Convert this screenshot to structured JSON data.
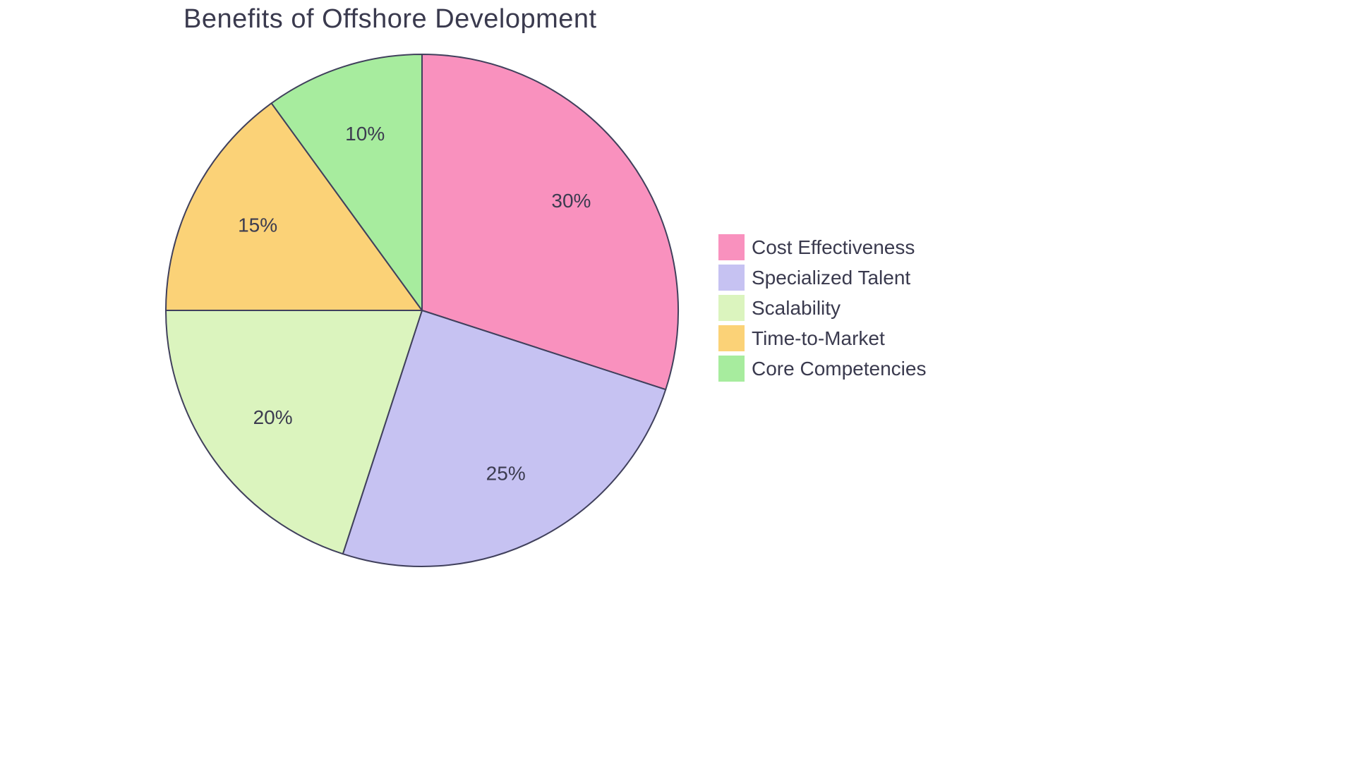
{
  "chart_data": {
    "type": "pie",
    "title": "Benefits of Offshore Development",
    "slices": [
      {
        "label": "Cost Effectiveness",
        "value": 30,
        "percent_label": "30%",
        "color": "#F991BE"
      },
      {
        "label": "Specialized Talent",
        "value": 25,
        "percent_label": "25%",
        "color": "#C6C2F2"
      },
      {
        "label": "Scalability",
        "value": 20,
        "percent_label": "20%",
        "color": "#DBF4BE"
      },
      {
        "label": "Time-to-Market",
        "value": 15,
        "percent_label": "15%",
        "color": "#FBD277"
      },
      {
        "label": "Core Competencies",
        "value": 10,
        "percent_label": "10%",
        "color": "#A7EC9E"
      }
    ],
    "start_angle_deg": 0,
    "direction": "clockwise",
    "legend_position": "right",
    "outline_color": "#40405C",
    "label_color": "#3C3C50",
    "background": "#FFFFFF"
  }
}
